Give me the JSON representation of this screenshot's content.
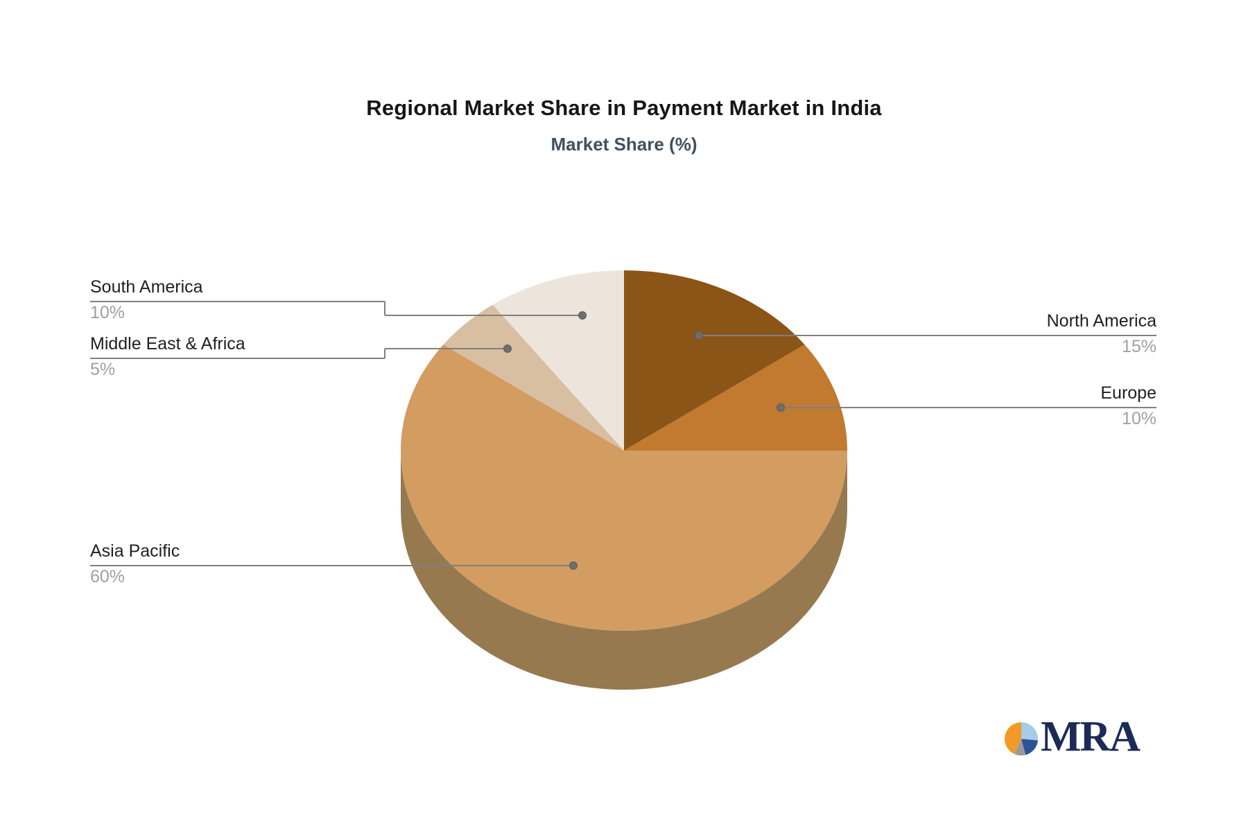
{
  "title": "Regional Market Share in Payment Market in India",
  "subtitle": "Market Share (%)",
  "chart_data": {
    "type": "pie",
    "title": "Regional Market Share in Payment Market in India",
    "subtitle": "Market Share (%)",
    "unit": "%",
    "direction": "clockwise",
    "start_angle_deg": 0,
    "effect_3d": true,
    "slices": [
      {
        "label": "North America",
        "value": 15,
        "display": "15%",
        "color": "#8B5518"
      },
      {
        "label": "Europe",
        "value": 10,
        "display": "10%",
        "color": "#C17A30"
      },
      {
        "label": "Asia Pacific",
        "value": 60,
        "display": "60%",
        "color": "#D39C61"
      },
      {
        "label": "Middle East & Africa",
        "value": 5,
        "display": "5%",
        "color": "#D9BFA1"
      },
      {
        "label": "South America",
        "value": 10,
        "display": "10%",
        "color": "#EDE5DC"
      }
    ],
    "side_color": "#97794F",
    "connector_color": "#7f7f7f",
    "dot_color": "#6e6e6e",
    "label_color": "#1f1f1f",
    "value_color": "#a0a0a0",
    "title_color": "#161616",
    "subtitle_color": "#42505c"
  },
  "logo": {
    "text": "MRA",
    "text_color": "#1c2a57",
    "glyph_colors": {
      "orange": "#F29A26",
      "light_blue": "#A7CCE8",
      "dark_blue": "#2C5397",
      "gray": "#9A9A9A"
    }
  }
}
